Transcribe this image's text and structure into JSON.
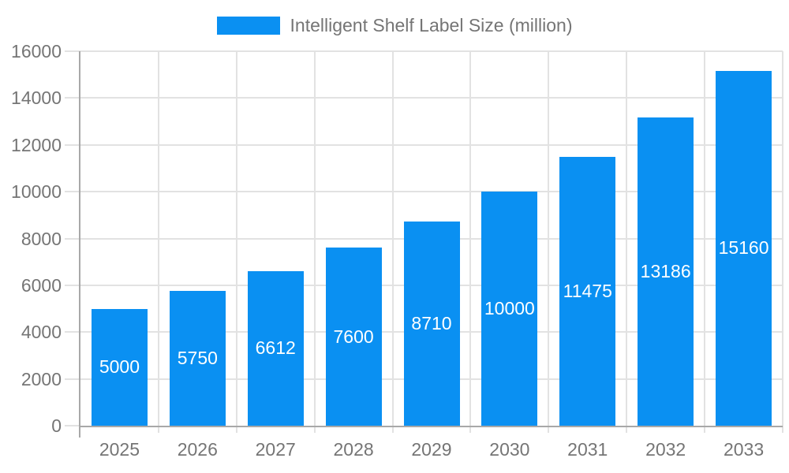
{
  "chart_data": {
    "type": "bar",
    "title": "Intelligent Shelf Label Size (million)",
    "legend_position": "top",
    "categories": [
      "2025",
      "2026",
      "2027",
      "2028",
      "2029",
      "2030",
      "2031",
      "2032",
      "2033"
    ],
    "series": [
      {
        "name": "Intelligent Shelf Label Size (million)",
        "values": [
          5000,
          5750,
          6612,
          7600,
          8710,
          10000,
          11475,
          13186,
          15160
        ]
      }
    ],
    "bar_value_labels": [
      "5000",
      "5750",
      "6612",
      "7600",
      "8710",
      "10000",
      "11475",
      "13186",
      "15160"
    ],
    "xlabel": "",
    "ylabel": "",
    "ylim": [
      0,
      16000
    ],
    "yticks": [
      0,
      2000,
      4000,
      6000,
      8000,
      10000,
      12000,
      14000,
      16000
    ],
    "grid": true,
    "colors": {
      "bar": "#0a90f2",
      "bar_label_text": "#ffffff",
      "axis_text": "#757575",
      "axis_line": "#a8a8a8",
      "gridline": "#e2e2e2",
      "background": "#ffffff"
    }
  }
}
